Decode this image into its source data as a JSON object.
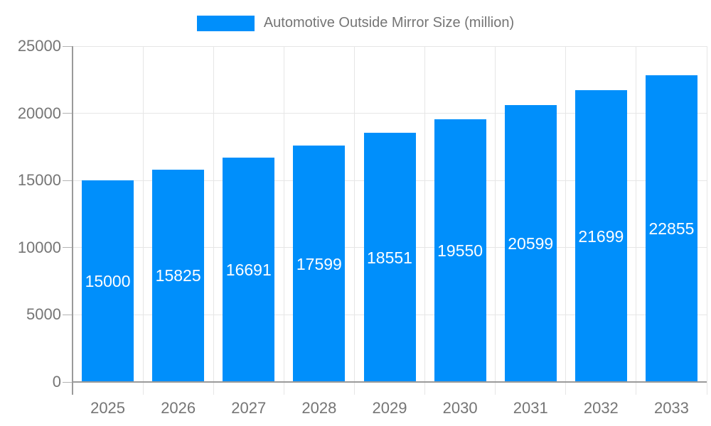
{
  "chart_data": {
    "type": "bar",
    "title": "Automotive Outside Mirror Size (million)",
    "xlabel": "",
    "ylabel": "",
    "categories": [
      "2025",
      "2026",
      "2027",
      "2028",
      "2029",
      "2030",
      "2031",
      "2032",
      "2033"
    ],
    "values": [
      15000,
      15825,
      16691,
      17599,
      18551,
      19550,
      20599,
      21699,
      22855
    ],
    "ylim": [
      0,
      25000
    ],
    "yticks": [
      0,
      5000,
      10000,
      15000,
      20000,
      25000
    ],
    "grid": true,
    "legend_position": "top",
    "value_labels_inside_bars": true
  },
  "legend": {
    "items": [
      {
        "label": "Automotive Outside Mirror Size (million)",
        "color": "#008FFB"
      }
    ]
  },
  "colors": {
    "bar": "#008FFB",
    "grid": "#e6e6e6",
    "axis": "#9a9a9a",
    "tick": "#b3b3b3",
    "tick_text": "#757575",
    "value_label_text": "#ffffff",
    "background": "#ffffff"
  }
}
